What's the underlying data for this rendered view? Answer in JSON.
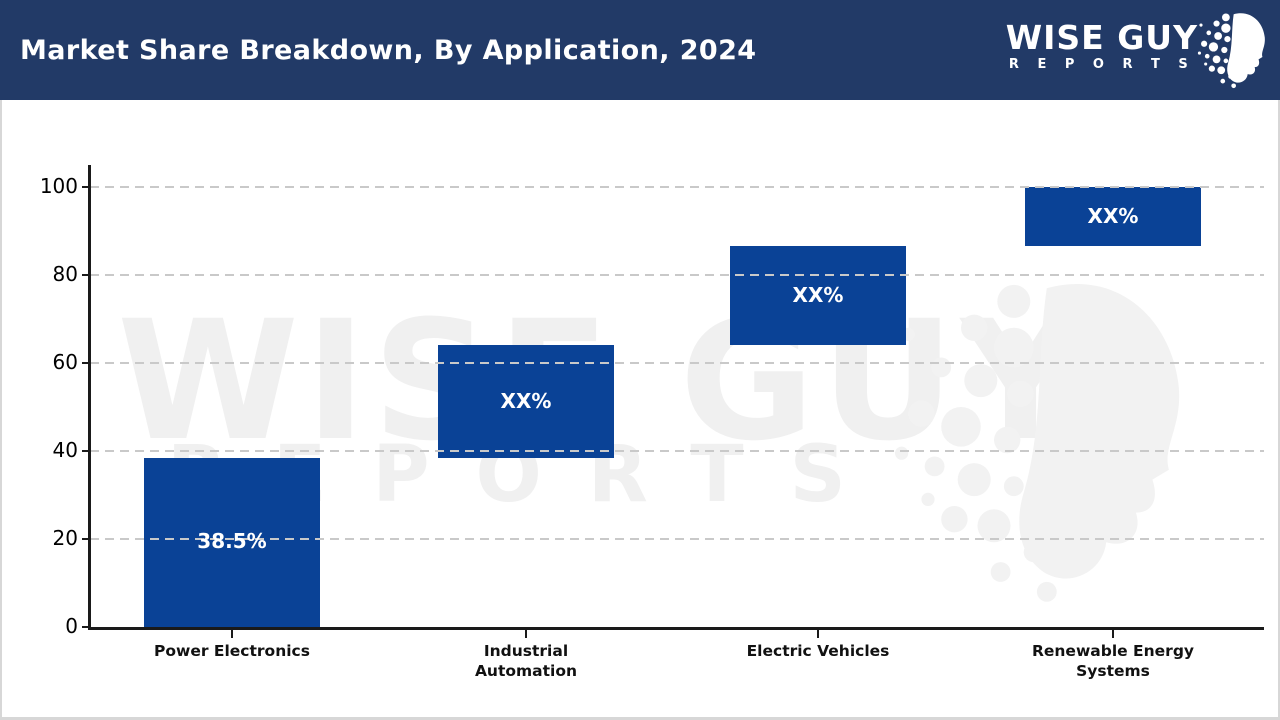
{
  "header": {
    "title": "Market Share Breakdown, By Application, 2024",
    "logo": {
      "line1": "WISE GUY",
      "line2": "R E P O R T S"
    }
  },
  "watermark": {
    "line1": "WISE GUY",
    "line2": "REPORTS"
  },
  "chart_data": {
    "type": "bar",
    "subtype": "waterfall",
    "title": "Market Share Breakdown, By Application, 2024",
    "categories": [
      "Power Electronics",
      "Industrial\nAutomation",
      "Electric Vehicles",
      "Renewable Energy\nSystems"
    ],
    "segments": [
      {
        "category": "Power Electronics",
        "start": 0,
        "end": 38.5,
        "label": "38.5%"
      },
      {
        "category": "Industrial Automation",
        "start": 38.5,
        "end": 64,
        "label": "XX%"
      },
      {
        "category": "Electric Vehicles",
        "start": 64,
        "end": 86.5,
        "label": "XX%"
      },
      {
        "category": "Renewable Energy Systems",
        "start": 86.5,
        "end": 100,
        "label": "XX%"
      }
    ],
    "yticks": [
      0,
      20,
      40,
      60,
      80,
      100
    ],
    "ylim": [
      0,
      105
    ],
    "xlabel": "",
    "ylabel": "",
    "grid": "horizontal-dashed",
    "legend": "none",
    "bar_color": "#0a4296",
    "label_color": "#ffffff",
    "header_color": "#223a67"
  }
}
